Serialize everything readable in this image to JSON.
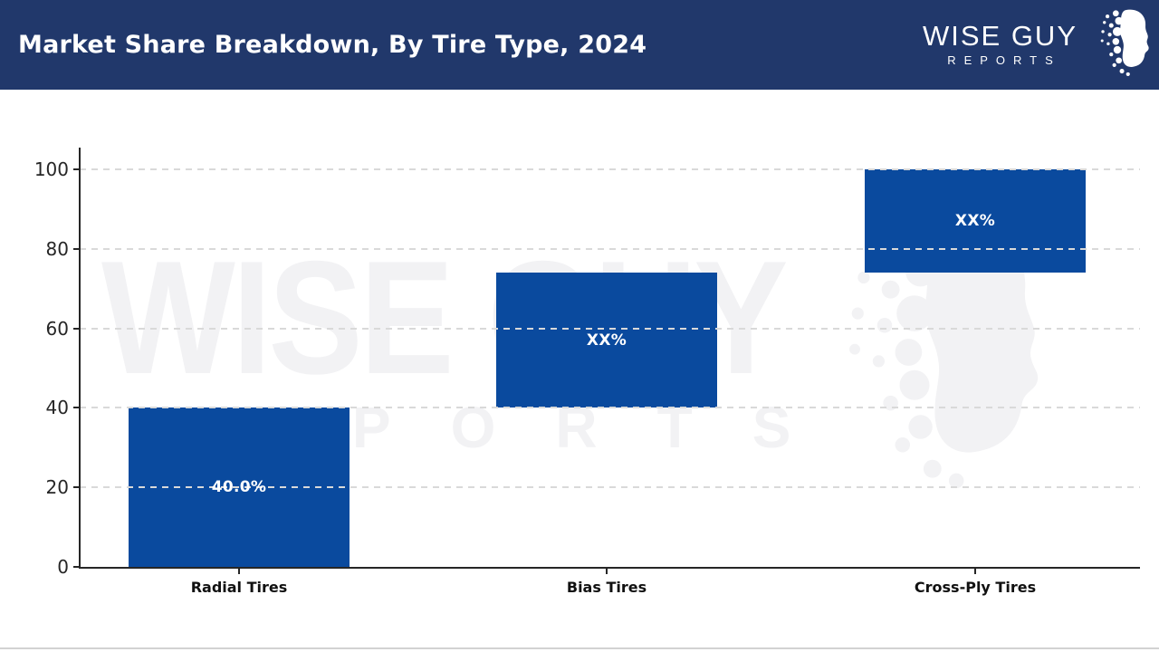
{
  "header": {
    "title": "Market Share Breakdown, By Tire Type, 2024",
    "logo": {
      "name_line": "WISE GUY",
      "sub_line": "REPORTS"
    }
  },
  "watermark": {
    "name_line": "WISE GUY",
    "sub_line": "REPORTS"
  },
  "colors": {
    "header_bg": "#21386b",
    "bar": "#0a4a9e",
    "grid": "#d9d9d9",
    "axis": "#262626",
    "bar_label": "#ffffff",
    "watermark": "#f2f2f4"
  },
  "chart_data": {
    "type": "bar",
    "subtype": "waterfall",
    "title": "Market Share Breakdown, By Tire Type, 2024",
    "categories": [
      "Radial Tires",
      "Bias Tires",
      "Cross-Ply Tires"
    ],
    "segments": [
      {
        "start": 0,
        "end": 40,
        "value": 40,
        "label": "40.0%"
      },
      {
        "start": 40,
        "end": 74,
        "value": 34,
        "label": "XX%"
      },
      {
        "start": 74,
        "end": 100,
        "value": 26,
        "label": "XX%"
      }
    ],
    "bar_labels": [
      "40.0%",
      "XX%",
      "XX%"
    ],
    "xlabel": "",
    "ylabel": "",
    "ylim": [
      0,
      105
    ],
    "y_ticks": [
      0,
      20,
      40,
      60,
      80,
      100
    ],
    "grid": "horizontal-dashed",
    "legend": "none",
    "bar_color": "#0a4a9e",
    "label_color": "#ffffff"
  }
}
